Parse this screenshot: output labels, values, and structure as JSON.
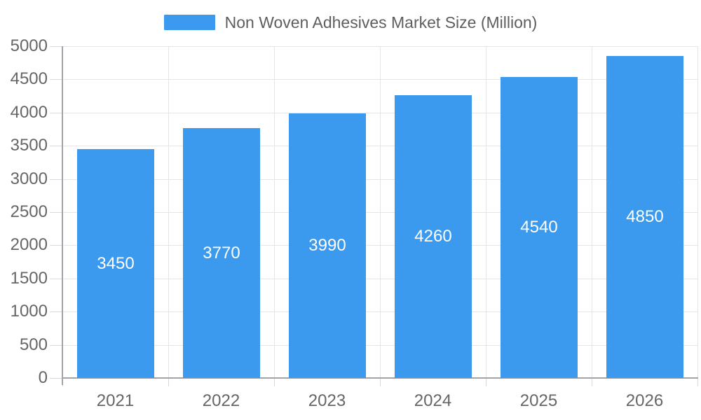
{
  "legend": {
    "label": "Non Woven Adhesives Market Size (Million)"
  },
  "chart_data": {
    "type": "bar",
    "title": "Non Woven Adhesives Market Size (Million)",
    "categories": [
      "2021",
      "2022",
      "2023",
      "2024",
      "2025",
      "2026"
    ],
    "values": [
      3450,
      3770,
      3990,
      4260,
      4540,
      4850
    ],
    "xlabel": "",
    "ylabel": "",
    "ylim": [
      0,
      5000
    ],
    "ytick_step": 500,
    "ytick_labels": [
      "0",
      "500",
      "1000",
      "1500",
      "2000",
      "2500",
      "3000",
      "3500",
      "4000",
      "4500",
      "5000"
    ],
    "grid": true,
    "legend_position": "top",
    "value_labels_position": "inside-center"
  },
  "colors": {
    "bar": "#3B99EE",
    "value_label": "#FFFFFF",
    "grid": "#E4E4E9",
    "axis_line": "#A2A2A8",
    "axis_tick": "#D8D8DD",
    "axis_label": "#666666",
    "legend_text": "#5E5E5E",
    "background": "#FFFFFF"
  }
}
